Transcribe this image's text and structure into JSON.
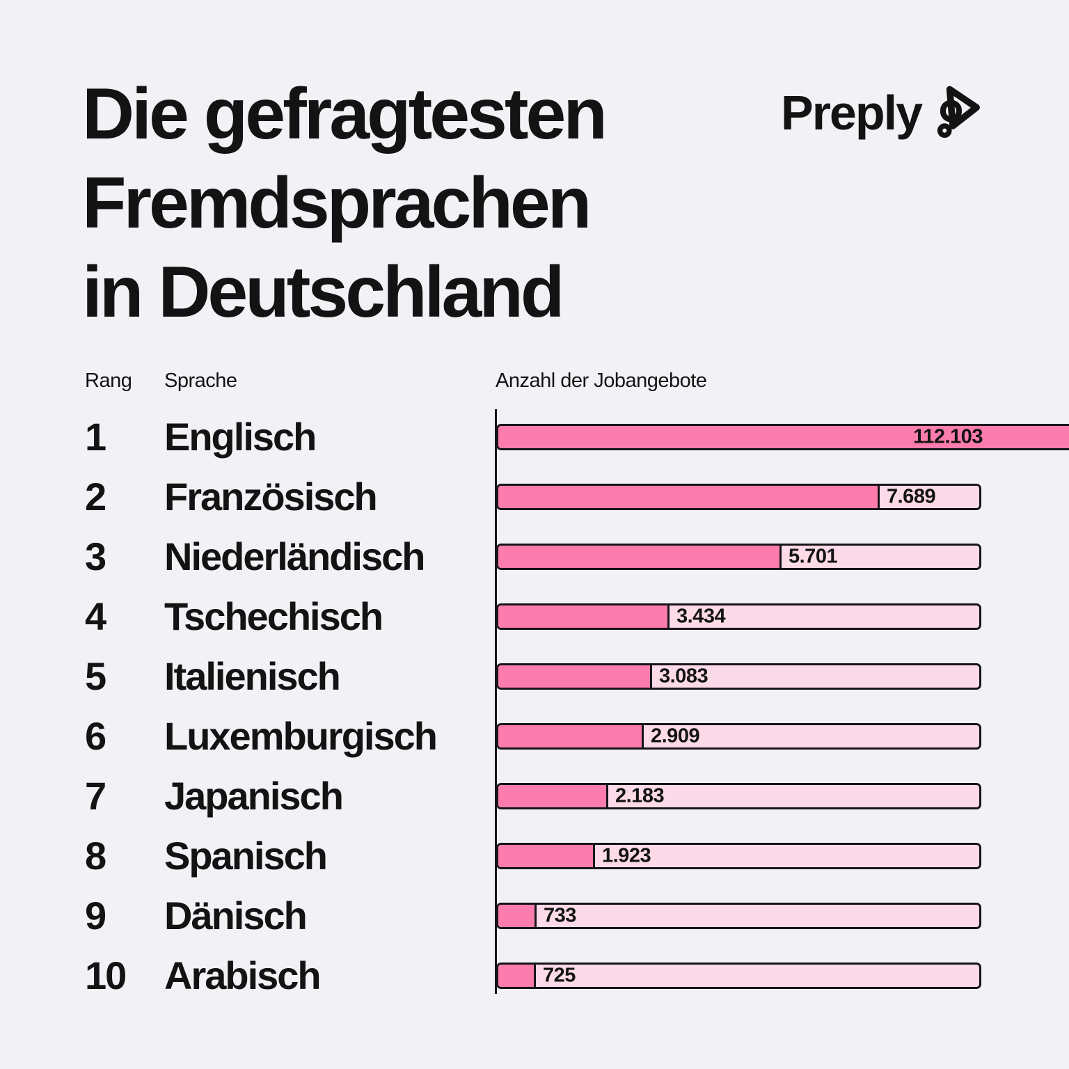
{
  "page": {
    "background_color": "#F2F1F6"
  },
  "title": {
    "lines": [
      "Die gefragtesten",
      "Fremdsprachen",
      "in Deutschland"
    ]
  },
  "logo": {
    "wordmark": "Preply"
  },
  "table_headers": {
    "rank": "Rang",
    "language": "Sprache",
    "values": "Anzahl der Jobangebote"
  },
  "chart_data": {
    "type": "bar",
    "orientation": "horizontal",
    "title": "Die gefragtesten Fremdsprachen in Deutschland",
    "xlabel": "Anzahl der Jobangebote",
    "ylabel": "Sprache",
    "ranks": [
      "1",
      "2",
      "3",
      "4",
      "5",
      "6",
      "7",
      "8",
      "9",
      "10"
    ],
    "categories": [
      "Englisch",
      "Französisch",
      "Niederländisch",
      "Tschechisch",
      "Italienisch",
      "Luxemburgisch",
      "Japanisch",
      "Spanisch",
      "Dänisch",
      "Arabisch"
    ],
    "values": [
      112103,
      7689,
      5701,
      3434,
      3083,
      2909,
      2183,
      1923,
      733,
      725
    ],
    "value_labels": [
      "112.103",
      "7.689",
      "5.701",
      "3.434",
      "3.083",
      "2.909",
      "2.183",
      "1.923",
      "733",
      "725"
    ],
    "grid": false,
    "legend": false,
    "axis_full_scale_value": 9750,
    "overflow_note": "Englisch bar exceeds the track scale and is clipped at the right canvas edge",
    "colors": {
      "bar_fill": "#FB7CAD",
      "bar_track": "#FDDAE7",
      "bar_border": "#17141A",
      "text": "#131313",
      "background": "#F2F1F6"
    }
  }
}
